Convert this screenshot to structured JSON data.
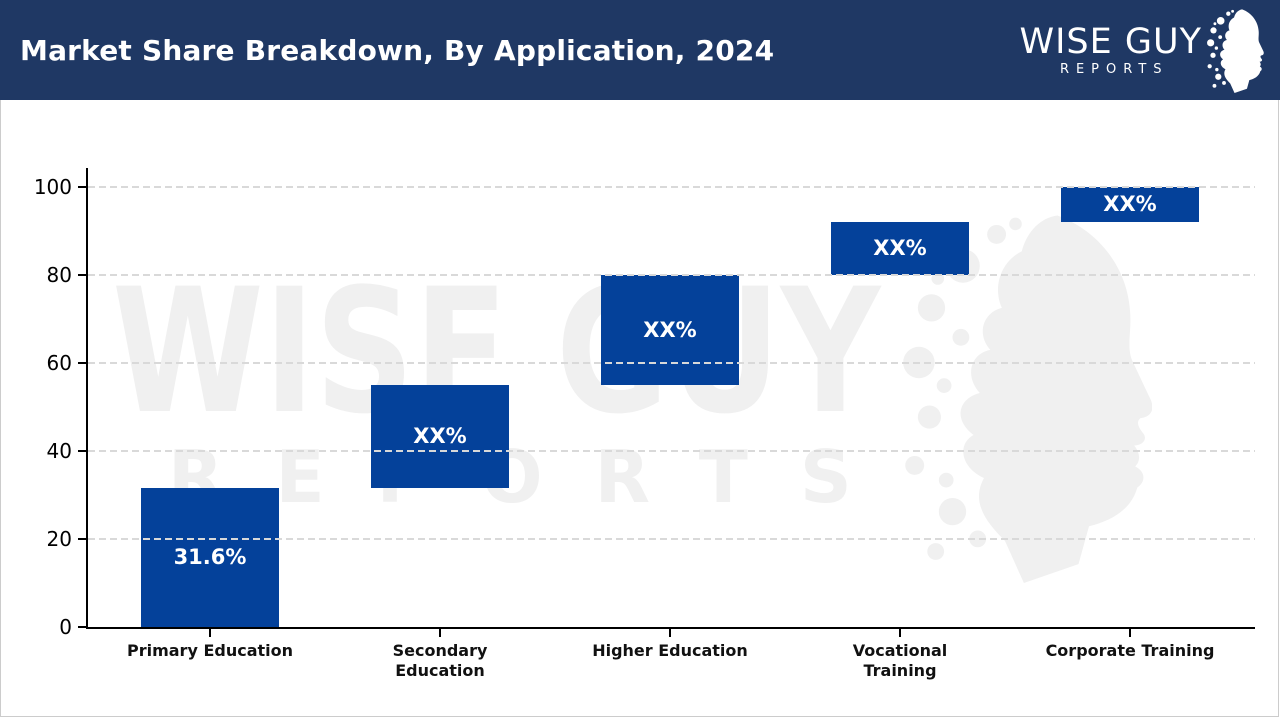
{
  "header": {
    "title": "Market Share Breakdown, By Application, 2024",
    "bg_color": "#1F3864",
    "logo": {
      "wordmark": "WISE GUY",
      "subtext": "REPORTS",
      "head_icon": "dotted-head-profile-icon"
    }
  },
  "watermark": {
    "line1": "WISE GUY",
    "line2": "REPORTS",
    "color": "#f0f0f0",
    "face_icon": "dotted-head-profile-watermark"
  },
  "chart_data": {
    "type": "bar",
    "variant": "waterfall",
    "title": "Market Share Breakdown, By Application, 2024",
    "categories": [
      "Primary Education",
      "Secondary Education",
      "Higher Education",
      "Vocational Training",
      "Corporate Training"
    ],
    "category_label_lines": [
      [
        "Primary Education"
      ],
      [
        "Secondary",
        "Education"
      ],
      [
        "Higher Education"
      ],
      [
        "Vocational",
        "Training"
      ],
      [
        "Corporate Training"
      ]
    ],
    "series": [
      {
        "name": "Market Share",
        "segments": [
          {
            "category": "Primary Education",
            "start": 0,
            "end": 31.6,
            "label": "31.6%"
          },
          {
            "category": "Secondary Education",
            "start": 31.6,
            "end": 55,
            "label": "XX%"
          },
          {
            "category": "Higher Education",
            "start": 55,
            "end": 80,
            "label": "XX%"
          },
          {
            "category": "Vocational Training",
            "start": 80,
            "end": 92,
            "label": "XX%"
          },
          {
            "category": "Corporate Training",
            "start": 92,
            "end": 100,
            "label": "XX%"
          }
        ]
      }
    ],
    "xlabel": "",
    "ylabel": "",
    "y_ticks": [
      0,
      20,
      40,
      60,
      80,
      100
    ],
    "ylim": [
      0,
      104
    ],
    "grid": {
      "axis": "y",
      "style": "dashed",
      "color": "#d9d9d9"
    },
    "legend": "none",
    "bar_color": "#04419A",
    "bar_label_color": "#ffffff",
    "axis_color": "#000000"
  }
}
